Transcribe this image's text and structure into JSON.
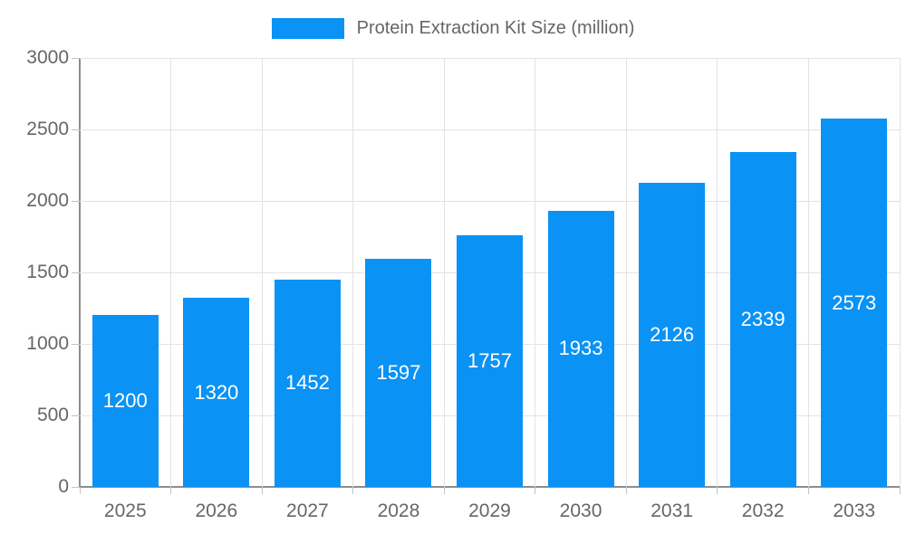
{
  "legend": {
    "label": "Protein Extraction Kit Size (million)",
    "swatch_color": "#0a92f5"
  },
  "chart_data": {
    "type": "bar",
    "title": "",
    "categories": [
      "2025",
      "2026",
      "2027",
      "2028",
      "2029",
      "2030",
      "2031",
      "2032",
      "2033"
    ],
    "series": [
      {
        "name": "Protein Extraction Kit Size (million)",
        "values": [
          1200,
          1320,
          1452,
          1597,
          1757,
          1933,
          2126,
          2339,
          2573
        ],
        "color": "#0a92f5"
      }
    ],
    "xlabel": "",
    "ylabel": "",
    "ylim": [
      0,
      3000
    ],
    "yticks": [
      0,
      500,
      1000,
      1500,
      2000,
      2500,
      3000
    ],
    "grid": true,
    "legend_position": "top",
    "value_labels": "inside-center",
    "value_label_color": "#ffffff"
  },
  "colors": {
    "bar": "#0a92f5",
    "axis_text": "#666666",
    "gridline": "#e3e3e3",
    "axis_line": "#8c8c8c",
    "tick_mark": "#c2c2c2"
  }
}
